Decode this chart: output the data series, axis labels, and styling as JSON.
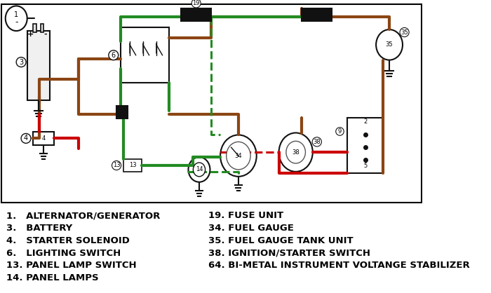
{
  "bg_color": "#ffffff",
  "border_color": "#000000",
  "legend_items_left": [
    "1.   ALTERNATOR/GENERATOR",
    "3.   BATTERY",
    "4.   STARTER SOLENOID",
    "6.   LIGHTING SWITCH",
    "13. PANEL LAMP SWITCH",
    "14. PANEL LAMPS"
  ],
  "legend_items_right": [
    "19. FUSE UNIT",
    "34. FUEL GAUGE",
    "35. FUEL GAUGE TANK UNIT",
    "38. IGNITION/STARTER SWITCH",
    "64. BI-METAL INSTRUMENT VOLTANGE STABILIZER"
  ],
  "wire_brown": "#8B4513",
  "wire_green": "#228B22",
  "wire_red": "#CC0000",
  "wire_black": "#111111",
  "wire_dashed_green": "#228B22",
  "wire_dashed_red": "#CC0000",
  "component_outline": "#333333",
  "font_size_legend": 9.5,
  "diagram_border": "#000000"
}
